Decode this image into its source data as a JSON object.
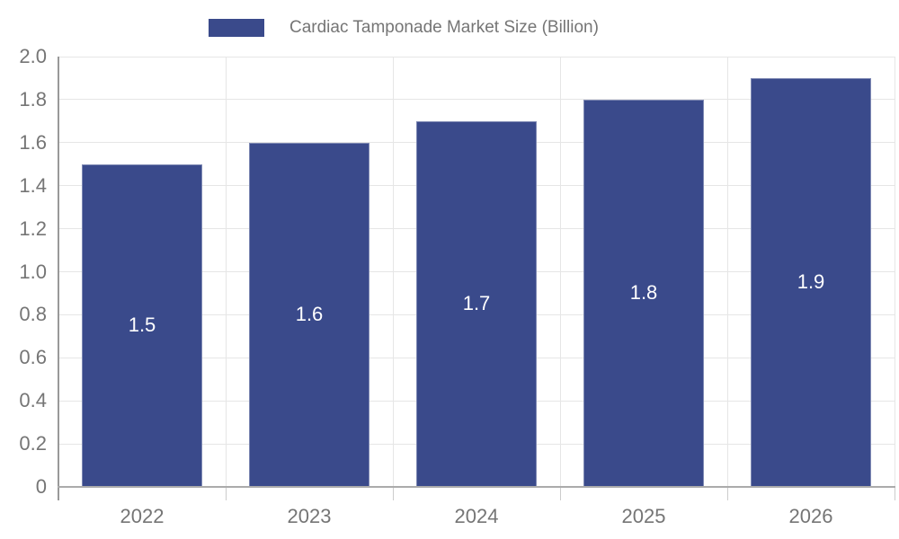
{
  "legend": {
    "label": "Cardiac Tamponade Market Size (Billion)"
  },
  "chart_data": {
    "type": "bar",
    "title": "Cardiac Tamponade Market Size (Billion)",
    "categories": [
      "2022",
      "2023",
      "2024",
      "2025",
      "2026"
    ],
    "values": [
      1.5,
      1.6,
      1.7,
      1.8,
      1.9
    ],
    "value_labels": [
      "1.5",
      "1.6",
      "1.7",
      "1.8",
      "1.9"
    ],
    "xlabel": "",
    "ylabel": "",
    "ylim": [
      0,
      2.0
    ],
    "yticks": [
      0,
      0.2,
      0.4,
      0.6,
      0.8,
      1.0,
      1.2,
      1.4,
      1.6,
      1.8,
      2.0
    ],
    "ytick_labels": [
      "0",
      "0.2",
      "0.4",
      "0.6",
      "0.8",
      "1.0",
      "1.2",
      "1.4",
      "1.6",
      "1.8",
      "2.0"
    ],
    "grid": true,
    "legend_position": "top"
  },
  "colors": {
    "bar": "#3a4a8b",
    "grid": "#e6e6e6",
    "axis_y": "#999999",
    "axis_x": "#ababab",
    "tick": "#cccccc",
    "tick_text": "#757575",
    "legend_text": "#757575",
    "value_label": "#ffffff"
  }
}
